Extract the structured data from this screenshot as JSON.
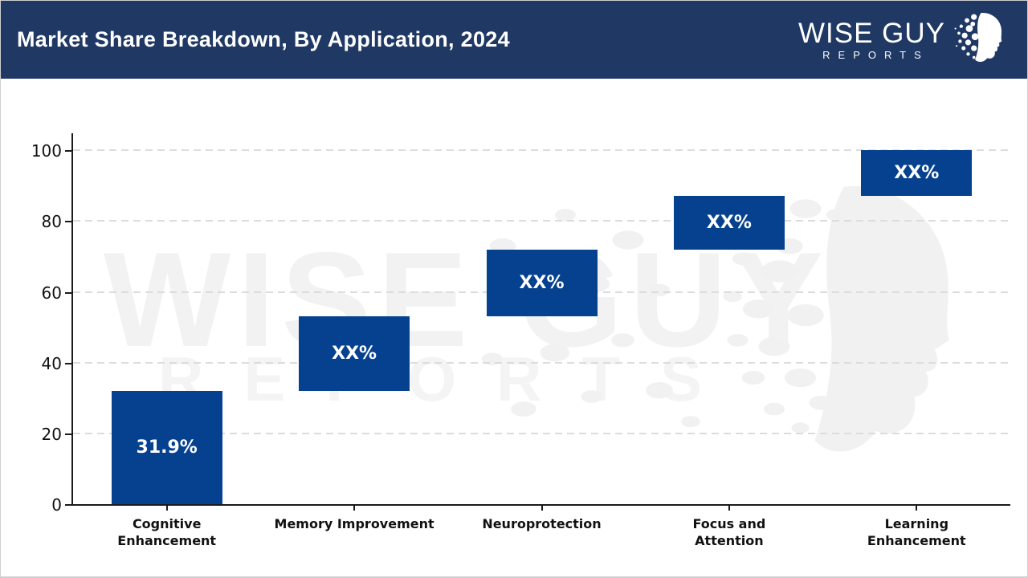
{
  "header": {
    "title": "Market Share Breakdown, By Application, 2024",
    "logo_line1": "WISE GUY",
    "logo_line2": "REPORTS"
  },
  "watermark": {
    "line1": "WISE GUY",
    "line2": "REPORTS"
  },
  "chart_data": {
    "type": "bar",
    "variant": "waterfall",
    "title": "Market Share Breakdown, By Application, 2024",
    "categories": [
      "Cognitive\nEnhancement",
      "Memory Improvement",
      "Neuroprotection",
      "Focus and\nAttention",
      "Learning\nEnhancement"
    ],
    "segments": [
      {
        "category": "Cognitive Enhancement",
        "start": 0,
        "end": 31.9,
        "label": "31.9%"
      },
      {
        "category": "Memory Improvement",
        "start": 31.9,
        "end": 53,
        "label": "XX%"
      },
      {
        "category": "Neuroprotection",
        "start": 53,
        "end": 72,
        "label": "XX%"
      },
      {
        "category": "Focus and Attention",
        "start": 72,
        "end": 87,
        "label": "XX%"
      },
      {
        "category": "Learning Enhancement",
        "start": 87,
        "end": 100,
        "label": "XX%"
      }
    ],
    "yticks": [
      0,
      20,
      40,
      60,
      80,
      100
    ],
    "ylim": [
      0,
      104.8
    ],
    "grid": {
      "axis": "y",
      "style": "dashed",
      "color": "#dcdcdc"
    },
    "xlabel": "",
    "ylabel": "",
    "legend": null,
    "bar_color": "#05418f",
    "bar_label_color": "#ffffff"
  },
  "colors": {
    "header_bg": "#1f3864",
    "bar": "#05418f",
    "watermark": "#f2f2f2",
    "axis": "#1a1a1a"
  }
}
